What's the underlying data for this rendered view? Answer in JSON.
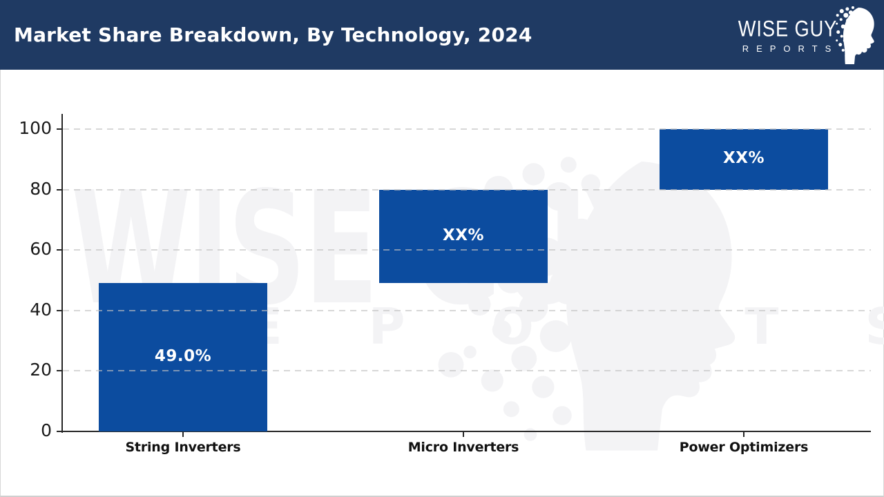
{
  "header": {
    "title": "Market Share Breakdown, By Technology, 2024",
    "logo": {
      "line1": "WISE GUY",
      "line2": "REPORTS"
    }
  },
  "watermark": {
    "line1": "WISE GUY",
    "line2": "R E P O R T S"
  },
  "chart_data": {
    "type": "bar",
    "subtype": "waterfall",
    "title": "Market Share Breakdown, By Technology, 2024",
    "categories": [
      "String Inverters",
      "Micro Inverters",
      "Power Optimizers"
    ],
    "bars": [
      {
        "category": "String Inverters",
        "start": 0,
        "end": 49.0,
        "label": "49.0%"
      },
      {
        "category": "Micro Inverters",
        "start": 49.0,
        "end": 79.9,
        "label": "XX%"
      },
      {
        "category": "Power Optimizers",
        "start": 80.0,
        "end": 100.0,
        "label": "XX%"
      }
    ],
    "xlabel": "",
    "ylabel": "",
    "ylim": [
      0,
      105
    ],
    "yticks": [
      0,
      20,
      40,
      60,
      80,
      100
    ],
    "grid": "horizontal-dashed",
    "legend": "none",
    "bar_color": "#0c4c9f"
  },
  "colors": {
    "header_bg": "#1f3a63",
    "bar": "#0c4c9f",
    "axis": "#262626",
    "grid": "#c0c0c0",
    "text": "#1a1a1a",
    "bar_label": "#ffffff",
    "watermark": "#f3f3f5"
  }
}
